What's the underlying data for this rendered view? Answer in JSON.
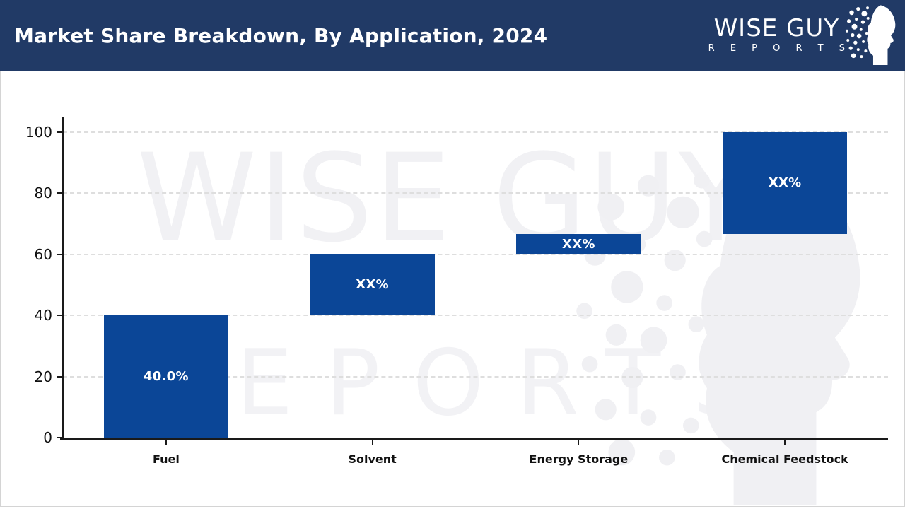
{
  "header": {
    "title": "Market Share Breakdown, By Application, 2024",
    "logo": {
      "line1": "WISE GUY",
      "line2": "R E P O R T S"
    }
  },
  "watermark": {
    "line1": "WISE GUY",
    "line2": "REPORTS"
  },
  "colors": {
    "header_bg": "#213a66",
    "bar_fill": "#0b4697",
    "bar_label": "#ffffff",
    "grid": "#dedede",
    "axis": "#1a1a1a",
    "watermark": "#f1f1f4"
  },
  "chart_data": {
    "type": "bar",
    "subtype": "waterfall",
    "title": "Market Share Breakdown, By Application, 2024",
    "categories": [
      "Fuel",
      "Solvent",
      "Energy Storage",
      "Chemical Feedstock"
    ],
    "segments": [
      {
        "category": "Fuel",
        "start": 0,
        "end": 40,
        "label": "40.0%"
      },
      {
        "category": "Solvent",
        "start": 40,
        "end": 60,
        "label": "XX%"
      },
      {
        "category": "Energy Storage",
        "start": 60,
        "end": 66.7,
        "label": "XX%"
      },
      {
        "category": "Chemical Feedstock",
        "start": 66.7,
        "end": 100,
        "label": "XX%"
      }
    ],
    "values_pct": [
      40.0,
      20.0,
      6.7,
      33.3
    ],
    "bar_labels": [
      "40.0%",
      "XX%",
      "XX%",
      "XX%"
    ],
    "xlabel": "",
    "ylabel": "",
    "ylim": [
      0,
      100
    ],
    "yticks": [
      0,
      20,
      40,
      60,
      80,
      100
    ],
    "grid": "horizontal-dashed",
    "legend": "none"
  }
}
